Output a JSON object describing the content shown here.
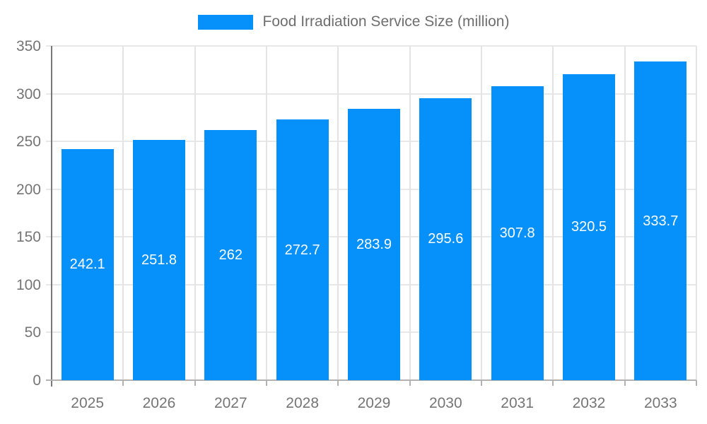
{
  "chart": {
    "legend": {
      "label": "Food Irradiation Service Size (million)"
    },
    "colors": {
      "bar": "#0591f9",
      "axis_text": "#757575",
      "grid": "#e8e8e8",
      "value_label": "#ffffff"
    }
  },
  "chart_data": {
    "type": "bar",
    "title": "Food Irradiation Service Size (million)",
    "categories": [
      "2025",
      "2026",
      "2027",
      "2028",
      "2029",
      "2030",
      "2031",
      "2032",
      "2033"
    ],
    "values": [
      242.1,
      251.8,
      262,
      272.7,
      283.9,
      295.6,
      307.8,
      320.5,
      333.7
    ],
    "value_labels": [
      "242.1",
      "251.8",
      "262",
      "272.7",
      "283.9",
      "295.6",
      "307.8",
      "320.5",
      "333.7"
    ],
    "xlabel": "",
    "ylabel": "",
    "ylim": [
      0,
      350
    ],
    "yticks": [
      0,
      50,
      100,
      150,
      200,
      250,
      300,
      350
    ],
    "grid": true,
    "legend_position": "top-center",
    "bar_color": "#0591f9",
    "value_label_position": "center"
  }
}
